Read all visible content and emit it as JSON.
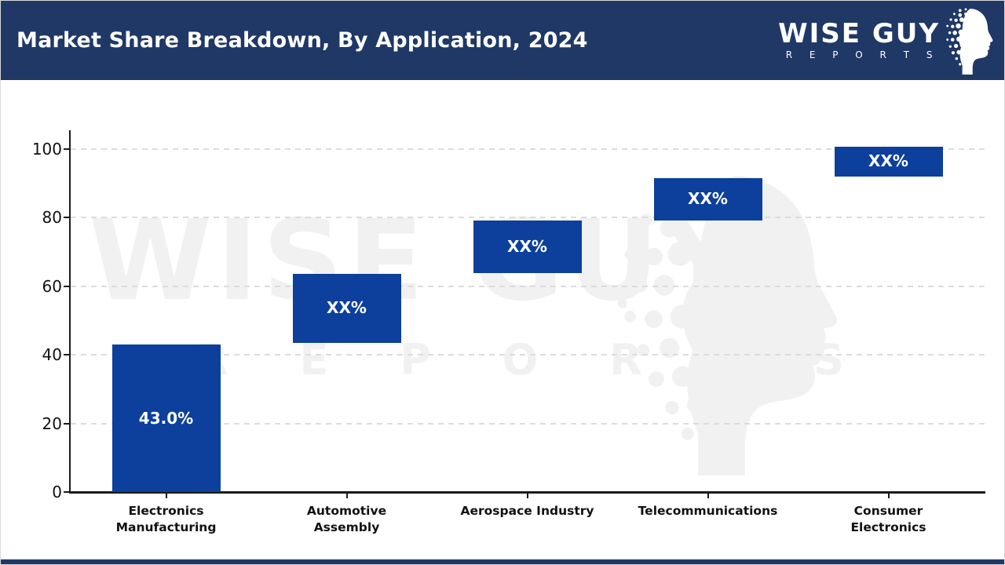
{
  "header": {
    "title": "Market Share Breakdown, By Application, 2024",
    "logo": {
      "line1": "WISE GUY",
      "line2": "R E P O R T S"
    }
  },
  "watermark": {
    "line1": "WISE GUY",
    "line2": "R E P O R T S"
  },
  "chart_data": {
    "type": "bar",
    "subtype": "waterfall",
    "title": "Market Share Breakdown, By Application, 2024",
    "categories": [
      "Electronics Manufacturing",
      "Automotive Assembly",
      "Aerospace Industry",
      "Telecommunications",
      "Consumer Electronics"
    ],
    "category_label_lines": [
      [
        "Electronics",
        "Manufacturing"
      ],
      [
        "Automotive",
        "Assembly"
      ],
      [
        "Aerospace Industry"
      ],
      [
        "Telecommunications"
      ],
      [
        "Consumer",
        "Electronics"
      ]
    ],
    "series": [
      {
        "name": "Market share (%)",
        "segments": [
          {
            "start": 0,
            "end": 43.0,
            "label": "43.0%"
          },
          {
            "start": 43.4,
            "end": 63.5,
            "label": "XX%"
          },
          {
            "start": 63.7,
            "end": 79.0,
            "label": "XX%"
          },
          {
            "start": 79.2,
            "end": 91.5,
            "label": "XX%"
          },
          {
            "start": 91.9,
            "end": 100.5,
            "label": "XX%"
          }
        ]
      }
    ],
    "xlabel": "",
    "ylabel": "",
    "ylim": [
      0,
      105
    ],
    "yticks": [
      0,
      20,
      40,
      60,
      80,
      100
    ],
    "grid": "horizontal-dashed",
    "legend": "none"
  },
  "colors": {
    "header_bg": "#1f3866",
    "bar": "#0c409c",
    "bar_label": "#ffffff",
    "grid": "#dcdcdc",
    "axis": "#1a1a1a",
    "text": "#111111",
    "watermark": "#f1f1f2",
    "page_border": "#d9d9d9"
  }
}
